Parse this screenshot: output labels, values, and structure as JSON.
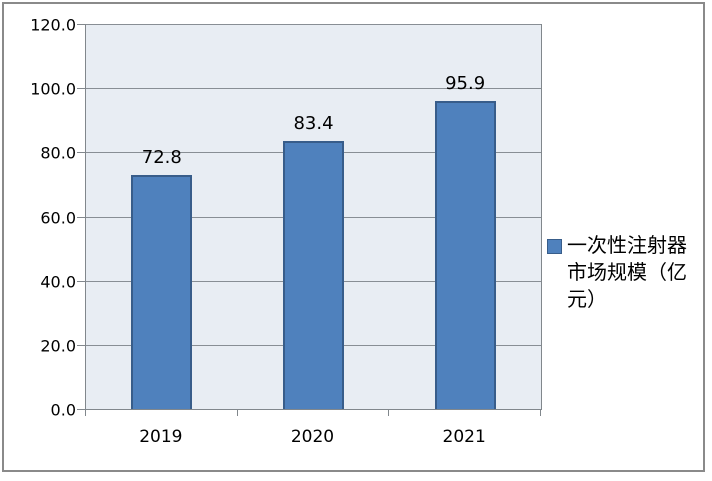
{
  "chart_data": {
    "type": "bar",
    "title": "",
    "categories": [
      "2019",
      "2020",
      "2021"
    ],
    "series": [
      {
        "name": "一次性注射器市场规模（亿元）",
        "values": [
          72.8,
          83.4,
          95.9
        ]
      }
    ],
    "data_labels": [
      "72.8",
      "83.4",
      "95.9"
    ],
    "ylim": [
      0,
      120
    ],
    "ytick_step": 20,
    "ytick_decimals": 1,
    "grid": true,
    "legend_position": "right",
    "legend_lines": [
      "一次性注射器",
      "市场规模（亿",
      "元）"
    ],
    "colors": {
      "bar_fill": "#4f81bd",
      "bar_border": "#385d8a",
      "plot_background": "#e8edf3",
      "gridline": "#888e94",
      "axis_line": "#81878c",
      "frame_border": "#8a8a8a",
      "text": "#000000",
      "page_background": "#ffffff"
    }
  }
}
